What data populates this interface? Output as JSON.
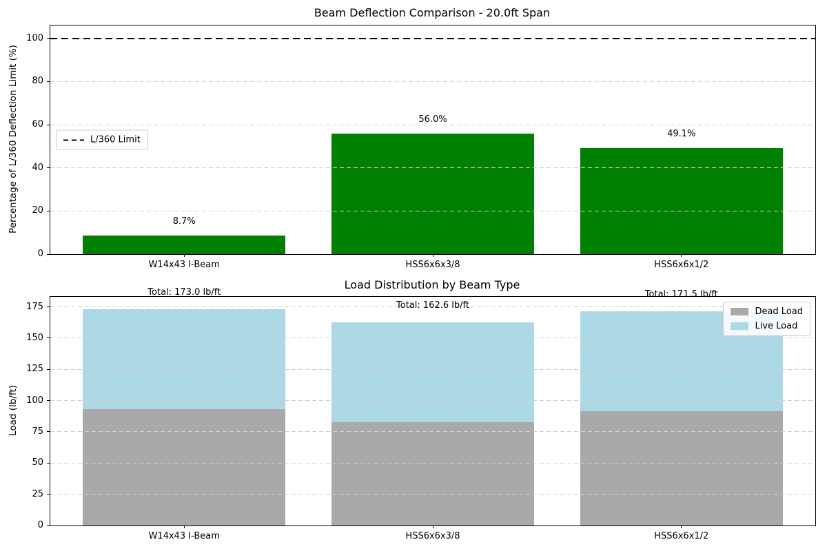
{
  "figure": {
    "background": "#ffffff",
    "grid_color": "#d0d0d0"
  },
  "chart_data": [
    {
      "type": "bar",
      "title": "Beam Deflection Comparison - 20.0ft Span",
      "ylabel": "Percentage of L/360 Deflection Limit (%)",
      "categories": [
        "W14x43 I-Beam",
        "HSS6x6x3/8",
        "HSS6x6x1/2"
      ],
      "values": [
        8.7,
        56.0,
        49.1
      ],
      "value_labels": [
        "8.7%",
        "56.0%",
        "49.1%"
      ],
      "bar_color": "#008000",
      "yticks": [
        0,
        20,
        40,
        60,
        80,
        100
      ],
      "ylim": [
        0,
        106
      ],
      "grid": true,
      "legend_position": "center-left",
      "reference_line": {
        "value": 100,
        "color": "#000000",
        "style": "dashed",
        "label": "L/360 Limit"
      }
    },
    {
      "type": "stacked-bar",
      "title": "Load Distribution by Beam Type",
      "ylabel": "Load (lb/ft)",
      "categories": [
        "W14x43 I-Beam",
        "HSS6x6x3/8",
        "HSS6x6x1/2"
      ],
      "series": [
        {
          "name": "Dead Load",
          "color": "#a9a9a9",
          "values": [
            93.0,
            82.6,
            91.5
          ]
        },
        {
          "name": "Live Load",
          "color": "#add8e6",
          "values": [
            80.0,
            80.0,
            80.0
          ]
        }
      ],
      "totals": [
        173.0,
        162.6,
        171.5
      ],
      "total_labels": [
        "Total: 173.0 lb/ft",
        "Total: 162.6 lb/ft",
        "Total: 171.5 lb/ft"
      ],
      "yticks": [
        0,
        25,
        50,
        75,
        100,
        125,
        150,
        175
      ],
      "ylim": [
        0,
        183
      ],
      "grid": true,
      "legend_position": "upper-right"
    }
  ]
}
